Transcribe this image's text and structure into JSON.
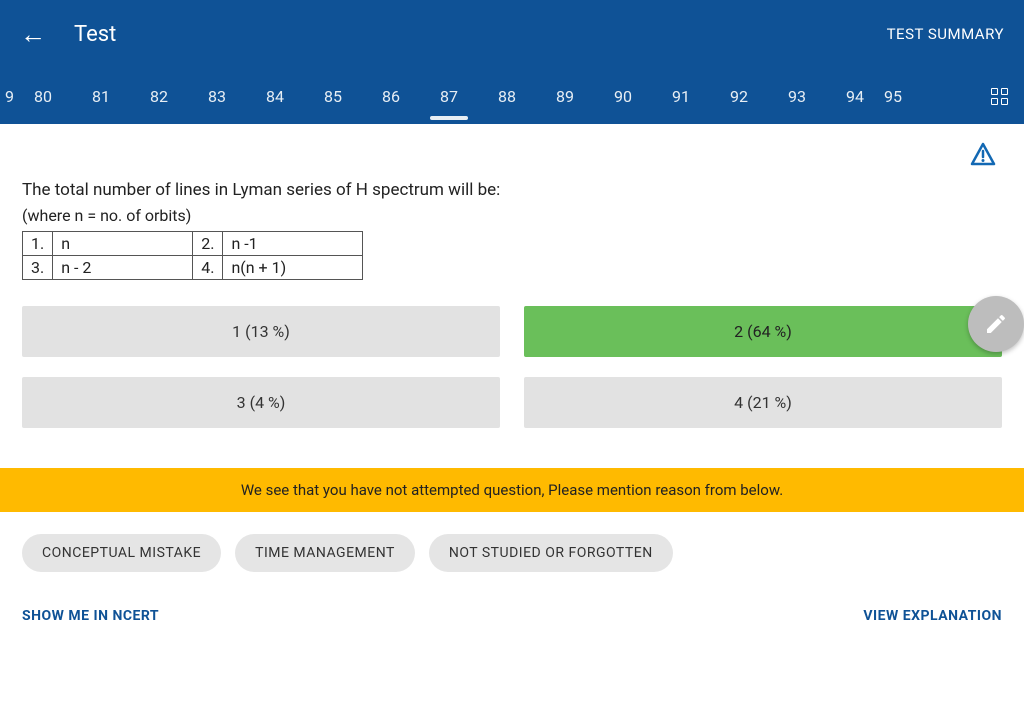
{
  "header": {
    "title": "Test",
    "summary_label": "TEST SUMMARY"
  },
  "qnav": {
    "partial_left": "9",
    "items": [
      "80",
      "81",
      "82",
      "83",
      "84",
      "85",
      "86",
      "87",
      "88",
      "89",
      "90",
      "91",
      "92",
      "93",
      "94"
    ],
    "partial_right": "95",
    "active_index": 7
  },
  "flag": {
    "stroke": "#1268b3",
    "fill": "#ffffff"
  },
  "question": {
    "text": "The total number of lines in Lyman series of H spectrum will be:",
    "subtext": "(where n = no. of orbits)",
    "options_table": {
      "cells": [
        [
          "1.",
          "n",
          "2.",
          "n -1"
        ],
        [
          "3.",
          "n - 2",
          "4.",
          "n(n + 1)"
        ]
      ]
    }
  },
  "answers": [
    {
      "label": "1 (13 %)",
      "correct": false
    },
    {
      "label": "2 (64 %)",
      "correct": true
    },
    {
      "label": "3 (4 %)",
      "correct": false
    },
    {
      "label": "4 (21 %)",
      "correct": false
    }
  ],
  "reason_bar": "We see that you have not attempted question, Please mention reason from below.",
  "reason_buttons": [
    "CONCEPTUAL MISTAKE",
    "TIME MANAGEMENT",
    "NOT STUDIED OR FORGOTTEN"
  ],
  "footer": {
    "left": "SHOW ME IN NCERT",
    "right": "VIEW EXPLANATION"
  },
  "colors": {
    "header_bg": "#0f5296",
    "answer_bg": "#e2e2e2",
    "answer_correct_bg": "#6abf5a",
    "reason_bar_bg": "#ffba00",
    "link_color": "#0f5296"
  }
}
